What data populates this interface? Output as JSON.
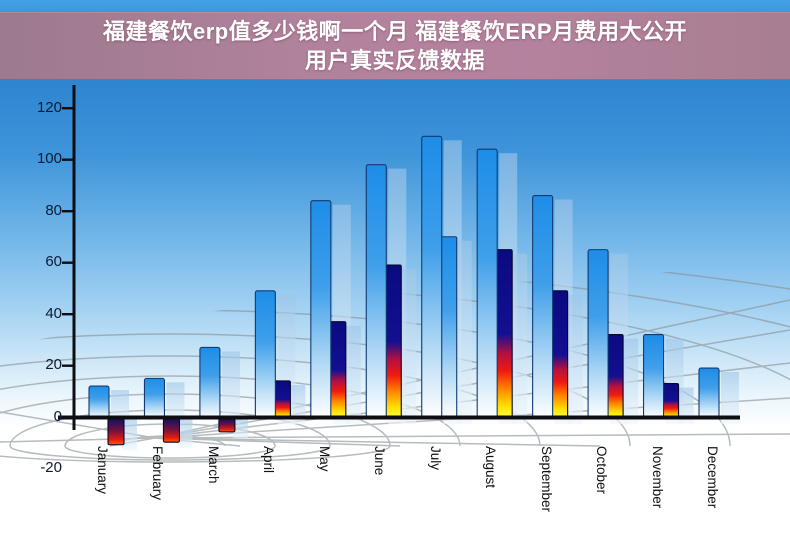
{
  "banner": {
    "line1": "福建餐饮erp值多少钱啊一个月 福建餐饮ERP月费用大公开",
    "line2": "用户真实反馈数据",
    "bg_color": "#ae7f97",
    "text_color": "#ffffff"
  },
  "chart_data": {
    "type": "bar",
    "title": "",
    "xlabel": "",
    "ylabel": "",
    "categories": [
      "January",
      "February",
      "March",
      "April",
      "May",
      "June",
      "July",
      "August",
      "September",
      "October",
      "November",
      "December"
    ],
    "series": [
      {
        "name": "primary-blue-bars",
        "values": [
          12,
          15,
          27,
          49,
          84,
          98,
          109,
          104,
          86,
          65,
          32,
          19
        ]
      },
      {
        "name": "secondary-gradient-bars",
        "values": [
          -10,
          -9,
          -5,
          14,
          37,
          59,
          70,
          65,
          49,
          32,
          13,
          null
        ],
        "note_july": "secondary bar rendered in blue gradient style",
        "note_december": "no secondary bar"
      }
    ],
    "yticks": [
      120,
      100,
      80,
      60,
      40,
      20,
      0,
      -20
    ],
    "ylim": [
      -20,
      120
    ],
    "legend": "none",
    "grid": "decorative perspective wireframe floor",
    "colors": {
      "bar_blue_top": "#1d8de8",
      "bar_blue_bottom": "#ffffff",
      "bar_secondary_navy": "#0a0a80",
      "bar_secondary_red": "#ee1a10",
      "bar_secondary_yellow": "#ffff40",
      "shadow_bar": "#a9cdec",
      "axis": "#0d0d12",
      "grid_line": "#878f94",
      "sky_top": "#2e86d1",
      "tick_label": "#0b1b33"
    }
  }
}
